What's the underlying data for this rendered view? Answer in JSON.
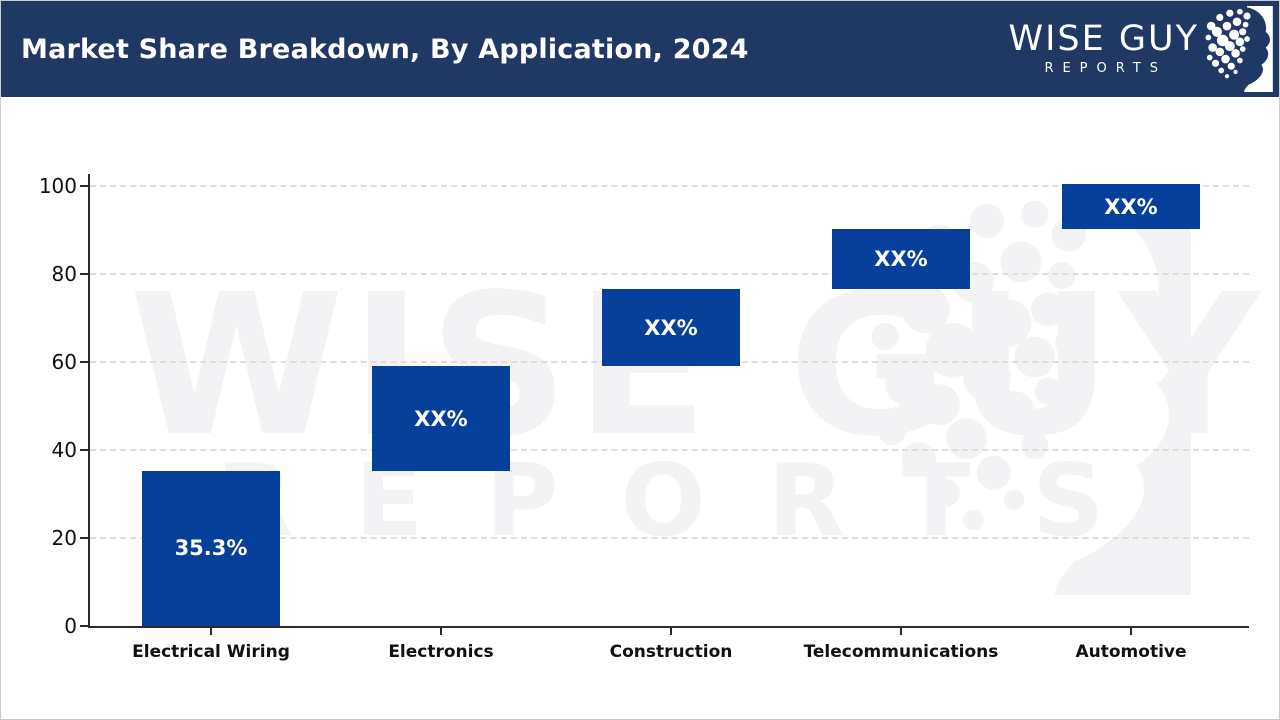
{
  "header": {
    "title": "Market Share Breakdown, By Application, 2024",
    "bg_color": "#1f3864",
    "logo": {
      "line1": "WISE GUY",
      "line2": "REPORTS"
    }
  },
  "watermark": {
    "line1": "WISE GUY",
    "line2": "REPORTS"
  },
  "chart_data": {
    "type": "bar",
    "subtype": "waterfall",
    "title": "Market Share Breakdown, By Application, 2024",
    "categories": [
      "Electrical Wiring",
      "Electronics",
      "Construction",
      "Telecommunications",
      "Automotive"
    ],
    "bars": [
      {
        "category": "Electrical Wiring",
        "start": 0,
        "end": 35.3,
        "value_label": "35.3%"
      },
      {
        "category": "Electronics",
        "start": 35.3,
        "end": 59.0,
        "value_label": "XX%"
      },
      {
        "category": "Construction",
        "start": 59.0,
        "end": 76.5,
        "value_label": "XX%"
      },
      {
        "category": "Telecommunications",
        "start": 76.5,
        "end": 90.2,
        "value_label": "XX%"
      },
      {
        "category": "Automotive",
        "start": 90.2,
        "end": 100.4,
        "value_label": "XX%"
      }
    ],
    "y_ticks": [
      0,
      20,
      40,
      60,
      80,
      100
    ],
    "ylim": [
      0,
      103
    ],
    "xlabel": "",
    "ylabel": "",
    "bar_color": "#07409b",
    "grid": "horizontal dashed",
    "gridline_color": "#dedede",
    "axis_color": "#2b2b2b",
    "legend": "none"
  }
}
